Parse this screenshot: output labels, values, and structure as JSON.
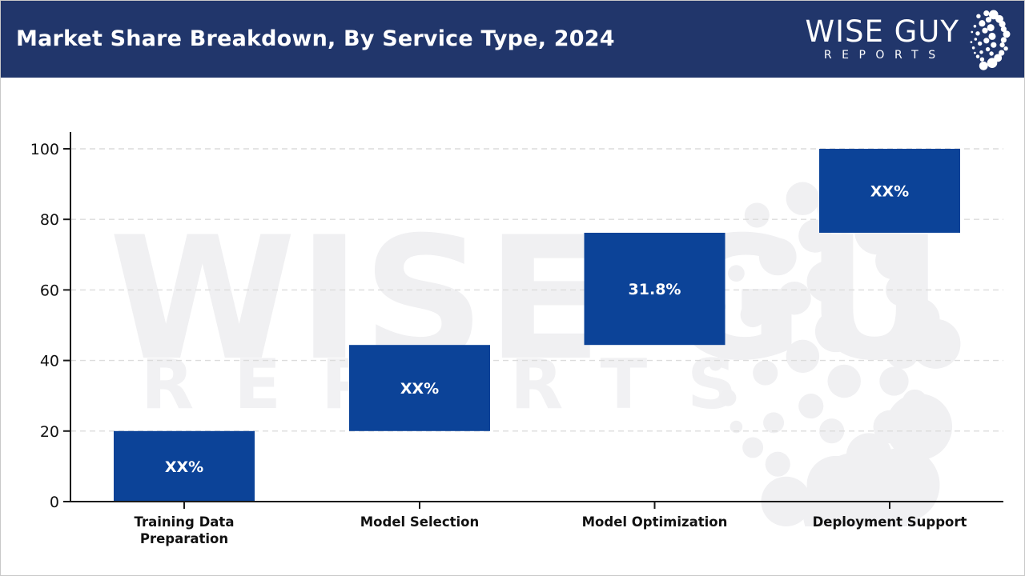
{
  "header": {
    "title": "Market Share Breakdown, By Service Type, 2024",
    "brand": {
      "name": "WISE GUY",
      "sub": "REPORTS"
    }
  },
  "watermark": {
    "name": "WISE GU",
    "sub": "REPORTS"
  },
  "chart_data": {
    "type": "bar",
    "subtype": "waterfall-floating-bars",
    "title": "Market Share Breakdown, By Service Type, 2024",
    "categories": [
      "Training Data Preparation",
      "Model Selection",
      "Model Optimization",
      "Deployment Support"
    ],
    "category_lines": [
      [
        "Training Data",
        "Preparation"
      ],
      [
        "Model Selection"
      ],
      [
        "Model Optimization"
      ],
      [
        "Deployment Support"
      ]
    ],
    "segments": [
      {
        "category": "Training Data Preparation",
        "start": 0,
        "end": 20,
        "label": "XX%"
      },
      {
        "category": "Model Selection",
        "start": 20,
        "end": 44.4,
        "label": "XX%"
      },
      {
        "category": "Model Optimization",
        "start": 44.4,
        "end": 76.2,
        "label": "31.8%"
      },
      {
        "category": "Deployment Support",
        "start": 76.2,
        "end": 100,
        "label": "XX%"
      }
    ],
    "yticks": [
      0,
      20,
      40,
      60,
      80,
      100
    ],
    "ylim": [
      0,
      104
    ],
    "xlabel": "",
    "ylabel": "",
    "grid": "horizontal-dashed",
    "legend": "none"
  },
  "colors": {
    "header_bg": "#21366b",
    "bar": "#0c4398",
    "bar_label": "#ffffff",
    "grid": "#dcdcdc",
    "axis": "#1a1a1a",
    "tick_label": "#111111",
    "watermark": "#f0f0f2",
    "frame_border": "#c9c9c9"
  }
}
